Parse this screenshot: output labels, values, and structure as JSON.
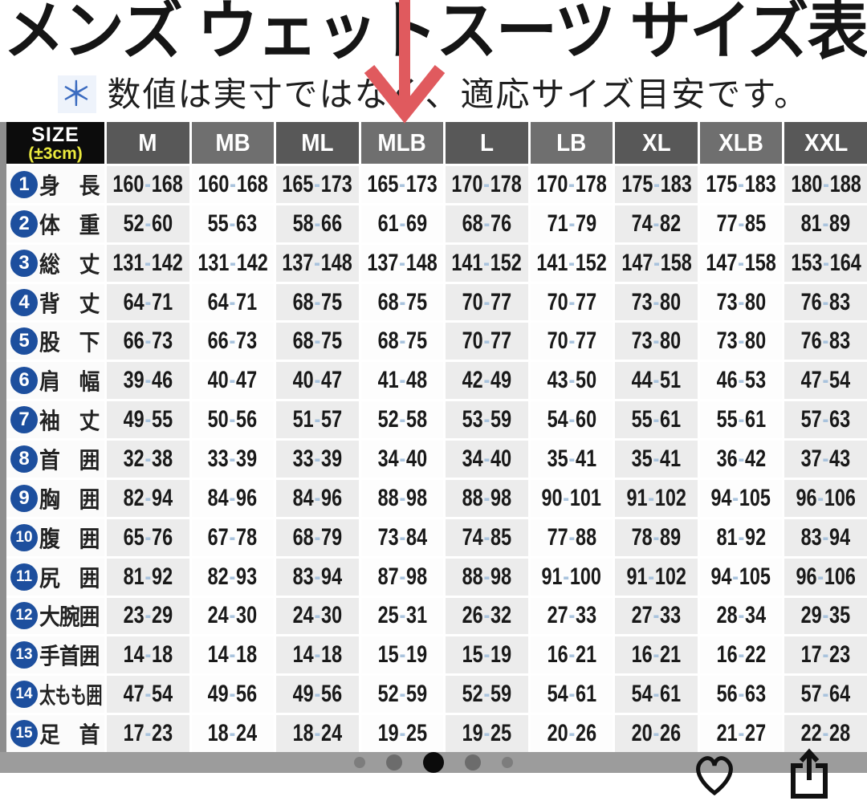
{
  "title": "メンズ ウェットスーツ サイズ表",
  "subtitle": {
    "asterisk": "＊",
    "text": " 数値は実寸ではなく、適応サイズ目安です。"
  },
  "arrow": {
    "direction": "down",
    "points_to_column": "MLB",
    "color": "#e05a5e"
  },
  "table": {
    "corner": {
      "line1": "SIZE",
      "line2": "(±3cm)"
    },
    "columns": [
      "M",
      "MB",
      "ML",
      "MLB",
      "L",
      "LB",
      "XL",
      "XLB",
      "XXL"
    ],
    "rows": [
      {
        "num": "1",
        "label": "身　長",
        "values": [
          "160-168",
          "160-168",
          "165-173",
          "165-173",
          "170-178",
          "170-178",
          "175-183",
          "175-183",
          "180-188"
        ]
      },
      {
        "num": "2",
        "label": "体　重",
        "values": [
          "52-60",
          "55-63",
          "58-66",
          "61-69",
          "68-76",
          "71-79",
          "74-82",
          "77-85",
          "81-89"
        ]
      },
      {
        "num": "3",
        "label": "総　丈",
        "values": [
          "131-142",
          "131-142",
          "137-148",
          "137-148",
          "141-152",
          "141-152",
          "147-158",
          "147-158",
          "153-164"
        ]
      },
      {
        "num": "4",
        "label": "背　丈",
        "values": [
          "64-71",
          "64-71",
          "68-75",
          "68-75",
          "70-77",
          "70-77",
          "73-80",
          "73-80",
          "76-83"
        ]
      },
      {
        "num": "5",
        "label": "股　下",
        "values": [
          "66-73",
          "66-73",
          "68-75",
          "68-75",
          "70-77",
          "70-77",
          "73-80",
          "73-80",
          "76-83"
        ]
      },
      {
        "num": "6",
        "label": "肩　幅",
        "values": [
          "39-46",
          "40-47",
          "40-47",
          "41-48",
          "42-49",
          "43-50",
          "44-51",
          "46-53",
          "47-54"
        ]
      },
      {
        "num": "7",
        "label": "袖　丈",
        "values": [
          "49-55",
          "50-56",
          "51-57",
          "52-58",
          "53-59",
          "54-60",
          "55-61",
          "55-61",
          "57-63"
        ]
      },
      {
        "num": "8",
        "label": "首　囲",
        "values": [
          "32-38",
          "33-39",
          "33-39",
          "34-40",
          "34-40",
          "35-41",
          "35-41",
          "36-42",
          "37-43"
        ]
      },
      {
        "num": "9",
        "label": "胸　囲",
        "values": [
          "82-94",
          "84-96",
          "84-96",
          "88-98",
          "88-98",
          "90-101",
          "91-102",
          "94-105",
          "96-106"
        ]
      },
      {
        "num": "10",
        "label": "腹　囲",
        "values": [
          "65-76",
          "67-78",
          "68-79",
          "73-84",
          "74-85",
          "77-88",
          "78-89",
          "81-92",
          "83-94"
        ]
      },
      {
        "num": "11",
        "label": "尻　囲",
        "values": [
          "81-92",
          "82-93",
          "83-94",
          "87-98",
          "88-98",
          "91-100",
          "91-102",
          "94-105",
          "96-106"
        ]
      },
      {
        "num": "12",
        "label": "大腕囲",
        "values": [
          "23-29",
          "24-30",
          "24-30",
          "25-31",
          "26-32",
          "27-33",
          "27-33",
          "28-34",
          "29-35"
        ]
      },
      {
        "num": "13",
        "label": "手首囲",
        "values": [
          "14-18",
          "14-18",
          "14-18",
          "15-19",
          "15-19",
          "16-21",
          "16-21",
          "16-22",
          "17-23"
        ]
      },
      {
        "num": "14",
        "label": "太もも囲",
        "values": [
          "47-54",
          "49-56",
          "49-56",
          "52-59",
          "52-59",
          "54-61",
          "54-61",
          "56-63",
          "57-64"
        ]
      },
      {
        "num": "15",
        "label": "足　首",
        "values": [
          "17-23",
          "18-24",
          "18-24",
          "19-25",
          "19-25",
          "20-26",
          "20-26",
          "21-27",
          "22-28"
        ]
      }
    ]
  },
  "carousel": {
    "dot_count": 5,
    "active_index": 2
  },
  "icons": {
    "favorite": "heart-icon",
    "share": "share-icon"
  },
  "colors": {
    "header_dark": "#585858",
    "header_light": "#6f6f6f",
    "corner_bg": "#0c0c0c",
    "corner_yellow": "#eae93e",
    "circle_blue": "#1d4f9e",
    "dash_blue": "#a9c3dd",
    "cell_gray": "#ececec",
    "arrow_red": "#e05a5e",
    "bar_gray": "#9c9c9c"
  }
}
